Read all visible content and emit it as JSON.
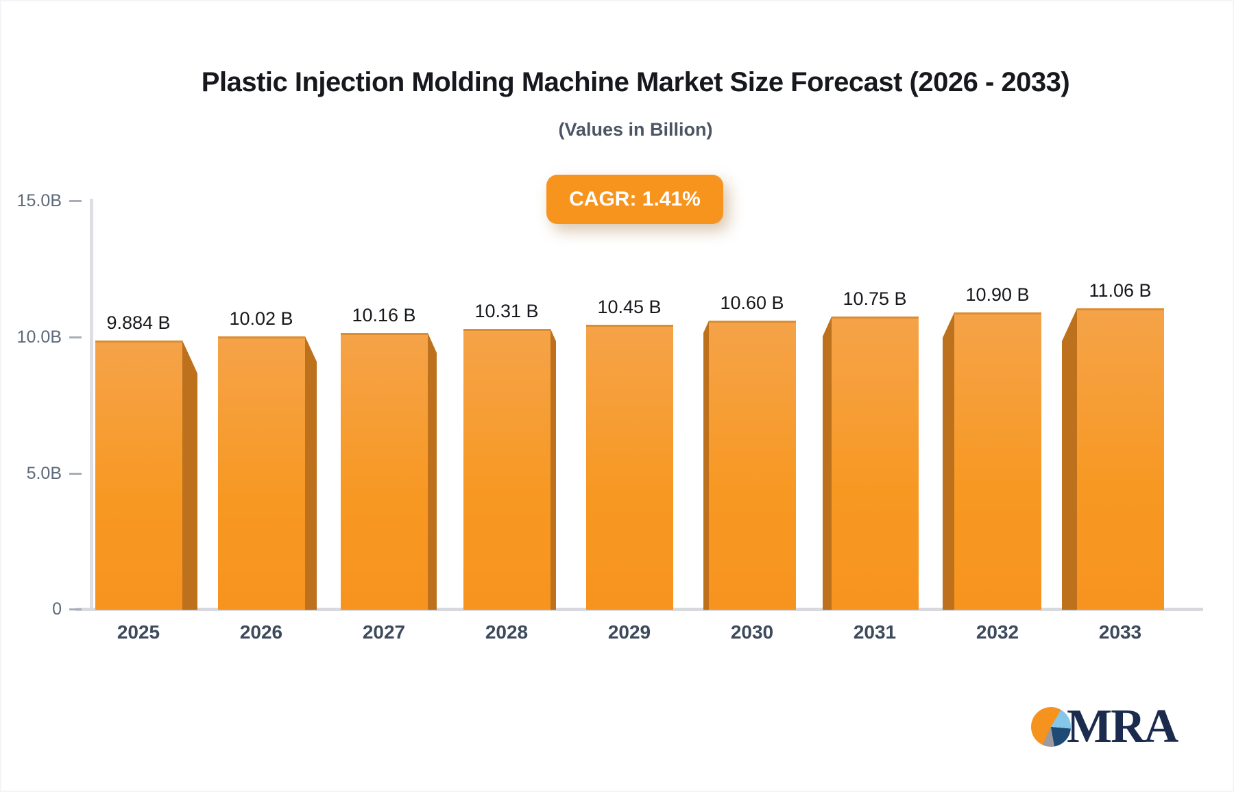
{
  "title": "Plastic Injection Molding Machine Market Size Forecast (2026 - 2033)",
  "subtitle": "(Values in Billion)",
  "badge": {
    "label": "CAGR: 1.41%"
  },
  "y_axis": {
    "ticks": [
      "15.0B",
      "10.0B",
      "5.0B",
      "0"
    ]
  },
  "chart_data": {
    "type": "bar",
    "title": "Plastic Injection Molding Machine Market Size Forecast (2026 - 2033)",
    "subtitle": "(Values in Billion)",
    "categories": [
      "2025",
      "2026",
      "2027",
      "2028",
      "2029",
      "2030",
      "2031",
      "2032",
      "2033"
    ],
    "values": [
      9.884,
      10.02,
      10.16,
      10.31,
      10.45,
      10.6,
      10.75,
      10.9,
      11.06
    ],
    "value_labels": [
      "9.884 B",
      "10.02 B",
      "10.16 B",
      "10.31 B",
      "10.45 B",
      "10.60 B",
      "10.75 B",
      "10.90 B",
      "11.06 B"
    ],
    "cagr": "CAGR: 1.41%",
    "xlabel": "",
    "ylabel": "",
    "ylim": [
      0,
      15
    ],
    "y_tick_step": 5,
    "unit": "Billion",
    "grid": false,
    "legend": "none",
    "bar_color": "#f7941f",
    "bar_color_light": "#f5a349",
    "bar_side_color": "#bd711c",
    "accent_color": "#f7941e"
  },
  "logo": {
    "text": "MRA"
  }
}
